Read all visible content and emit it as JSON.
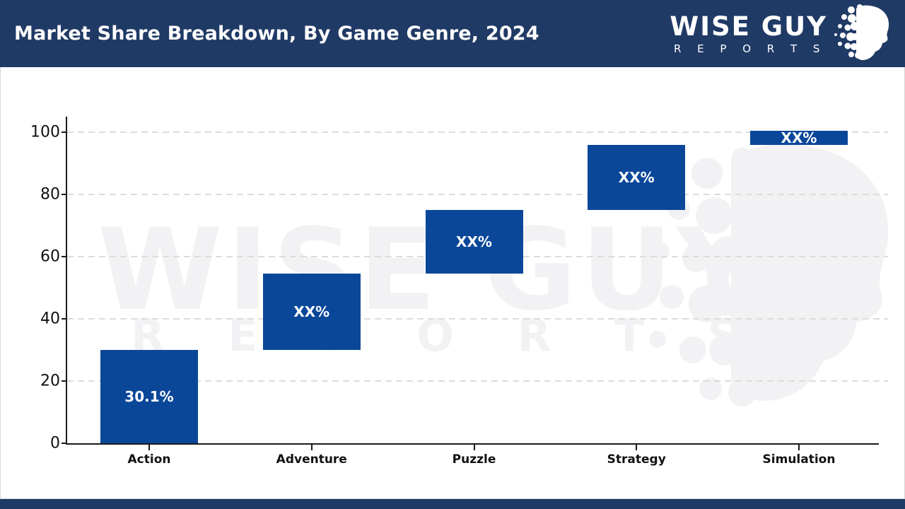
{
  "header": {
    "title": "Market Share Breakdown, By Game Genre, 2024",
    "logo": {
      "line1": "WISE GUY",
      "line2": "REPORTS",
      "line2_display": "R E P O R T S"
    }
  },
  "watermark": {
    "line1": "WISE GUY",
    "line2": "R E P O R T S"
  },
  "chart_data": {
    "type": "bar",
    "subtype": "waterfall",
    "title": "Market Share Breakdown, By Game Genre, 2024",
    "categories": [
      "Action",
      "Adventure",
      "Puzzle",
      "Strategy",
      "Simulation"
    ],
    "segments": [
      {
        "category": "Action",
        "start": 0,
        "end": 30.1,
        "label": "30.1%"
      },
      {
        "category": "Adventure",
        "start": 30.1,
        "end": 54.6,
        "label": "XX%"
      },
      {
        "category": "Puzzle",
        "start": 54.6,
        "end": 75.1,
        "label": "XX%"
      },
      {
        "category": "Strategy",
        "start": 75.1,
        "end": 96.0,
        "label": "XX%"
      },
      {
        "category": "Simulation",
        "start": 96.0,
        "end": 100.4,
        "label": "XX%"
      }
    ],
    "yticks": [
      0,
      20,
      40,
      60,
      80,
      100
    ],
    "ylim": [
      0,
      105
    ],
    "xlabel": "",
    "ylabel": "",
    "grid": "horizontal-dashed",
    "legend": "none",
    "bar_color": "#0b4799",
    "bar_label_color": "#ffffff"
  },
  "colors": {
    "header_bg": "#203a66",
    "footer_bg": "#203a66",
    "axis": "#1a1a1a",
    "grid": "#dcdcdc",
    "watermark": "#f2f2f4"
  }
}
